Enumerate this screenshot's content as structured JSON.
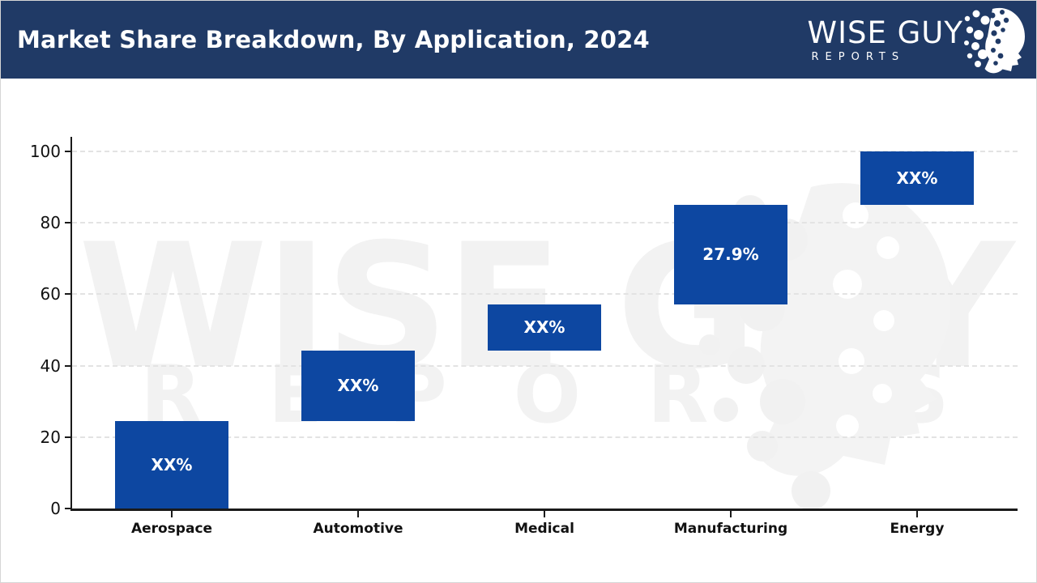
{
  "header": {
    "title": "Market Share Breakdown, By Application, 2024",
    "logo": {
      "line1": "WISE GUY",
      "line2": "REPORTS"
    }
  },
  "watermark": {
    "line1": "WISE GUY",
    "line2": "REPORTS"
  },
  "colors": {
    "header_bg": "#203a66",
    "bar": "#0d47a1",
    "bar_label": "#ffffff",
    "axis": "#1a1a1a",
    "gridline": "#e3e3e3",
    "watermark": "#f2f2f2"
  },
  "chart_data": {
    "type": "bar",
    "subtype": "waterfall",
    "title": "Market Share Breakdown, By Application, 2024",
    "categories": [
      "Aerospace",
      "Automotive",
      "Medical",
      "Manufacturing",
      "Energy"
    ],
    "segments": [
      {
        "category": "Aerospace",
        "start": 0,
        "end": 24.5,
        "label": "XX%"
      },
      {
        "category": "Automotive",
        "start": 24.5,
        "end": 44.3,
        "label": "XX%"
      },
      {
        "category": "Medical",
        "start": 44.3,
        "end": 57.2,
        "label": "XX%"
      },
      {
        "category": "Manufacturing",
        "start": 57.2,
        "end": 85.1,
        "label": "27.9%"
      },
      {
        "category": "Energy",
        "start": 85.1,
        "end": 100,
        "label": "XX%"
      }
    ],
    "xlabel": "",
    "ylabel": "",
    "yticks": [
      0,
      20,
      40,
      60,
      80,
      100
    ],
    "ylim": [
      0,
      100
    ],
    "grid": "horizontal-dashed",
    "legend": "none"
  }
}
